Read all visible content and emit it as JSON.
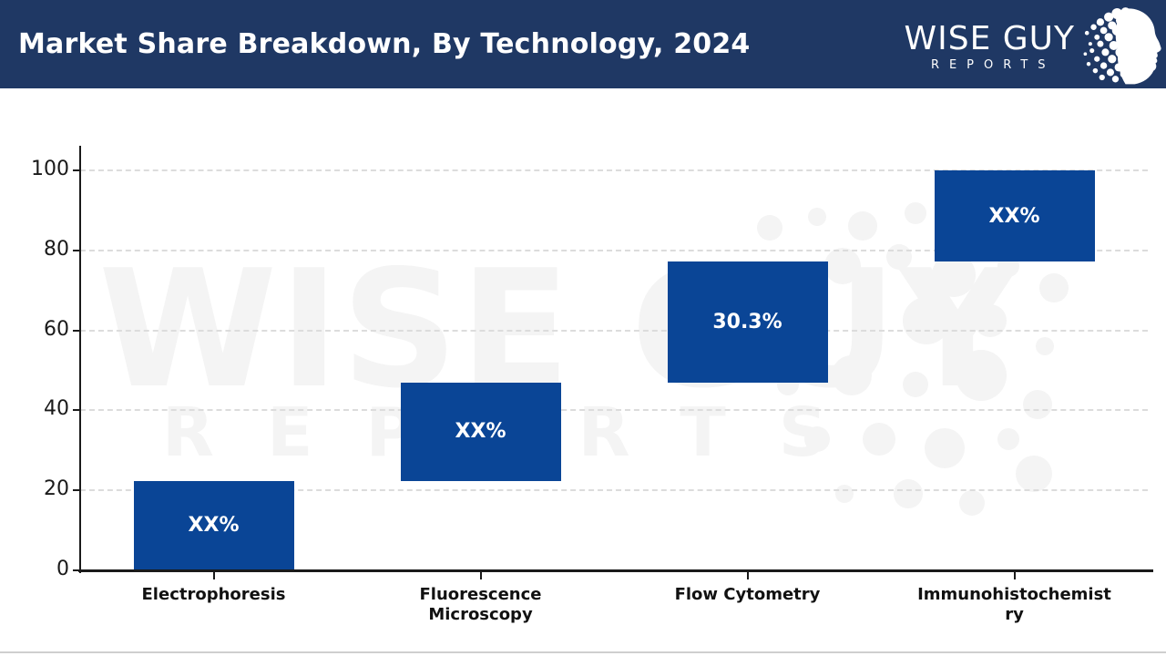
{
  "header": {
    "title": "Market Share Breakdown, By Technology, 2024",
    "brand_name": "WISE GUY",
    "brand_sub": "REPORTS",
    "bg_color": "#1f3864"
  },
  "watermark": {
    "line1": "WISE GUY",
    "line2": "REPORTS"
  },
  "chart_data": {
    "type": "bar",
    "subtype": "waterfall",
    "title": "Market Share Breakdown, By Technology, 2024",
    "categories": [
      "Electrophoresis",
      "Fluorescence Microscopy",
      "Flow Cytometry",
      "Immunohistochemistry"
    ],
    "category_label_lines": [
      [
        "Electrophoresis"
      ],
      [
        "Fluorescence",
        "Microscopy"
      ],
      [
        "Flow Cytometry"
      ],
      [
        "Immunohistochemist",
        "ry"
      ]
    ],
    "segments": [
      {
        "category": "Electrophoresis",
        "start": 0,
        "end": 22.4,
        "label": "XX%"
      },
      {
        "category": "Fluorescence Microscopy",
        "start": 22.4,
        "end": 46.9,
        "label": "XX%"
      },
      {
        "category": "Flow Cytometry",
        "start": 46.9,
        "end": 77.2,
        "label": "30.3%"
      },
      {
        "category": "Immunohistochemistry",
        "start": 77.2,
        "end": 100,
        "label": "XX%"
      }
    ],
    "yticks": [
      0,
      20,
      40,
      60,
      80,
      100
    ],
    "ylim": [
      0,
      105
    ],
    "xlabel": "",
    "ylabel": "",
    "grid": "dashed-horizontal",
    "legend": "none",
    "bar_color": "#0a4596",
    "bar_label_color": "#ffffff",
    "gridline_color": "#dcdcdc",
    "axis_color": "#1a1a1a",
    "watermark_color": "#f4f4f4"
  }
}
